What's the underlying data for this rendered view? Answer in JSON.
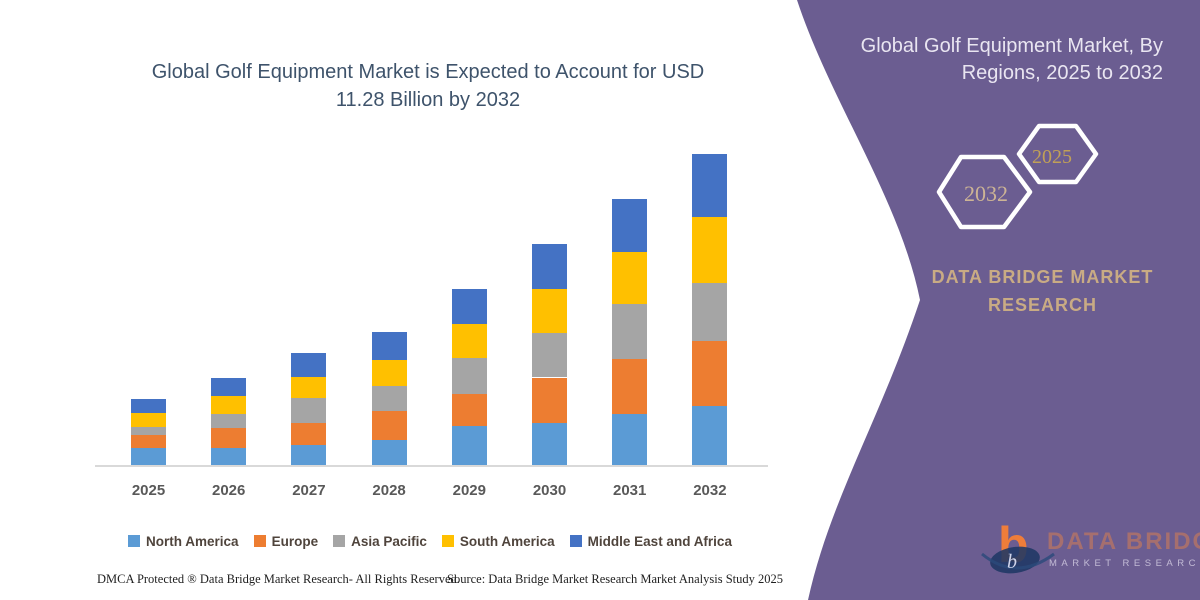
{
  "header": {
    "title_line1": "Global Golf Equipment Market is Expected to Account for USD",
    "title_line2": "11.28 Billion by 2032"
  },
  "chart_data": {
    "type": "bar",
    "stacked": true,
    "title": "Global Golf Equipment Market is Expected to Account for USD 11.28 Billion by 2032",
    "xlabel": "",
    "ylabel": "",
    "units": "USD Billion",
    "ylim": [
      0,
      11.28
    ],
    "grid": false,
    "y_axis_shown": false,
    "legend_position": "bottom",
    "categories": [
      "2025",
      "2026",
      "2027",
      "2028",
      "2029",
      "2030",
      "2031",
      "2032"
    ],
    "series": [
      {
        "name": "North America",
        "color": "#5b9bd5",
        "values": [
          0.6,
          0.62,
          0.72,
          0.9,
          1.4,
          1.51,
          1.85,
          2.15
        ]
      },
      {
        "name": "Europe",
        "color": "#ed7d31",
        "values": [
          0.48,
          0.72,
          0.81,
          1.05,
          1.19,
          1.66,
          1.99,
          2.35
        ]
      },
      {
        "name": "Asia Pacific",
        "color": "#a5a5a5",
        "values": [
          0.3,
          0.51,
          0.88,
          0.9,
          1.28,
          1.61,
          1.99,
          2.11
        ]
      },
      {
        "name": "South America",
        "color": "#ffc000",
        "values": [
          0.51,
          0.65,
          0.78,
          0.97,
          1.25,
          1.61,
          1.87,
          2.38
        ]
      },
      {
        "name": "Middle East and Africa",
        "color": "#4472c4",
        "values": [
          0.49,
          0.66,
          0.85,
          1.0,
          1.24,
          1.63,
          1.95,
          2.29
        ]
      }
    ],
    "totals": [
      2.38,
      3.16,
      4.04,
      4.82,
      6.36,
      8.02,
      9.65,
      11.28
    ]
  },
  "footer": {
    "dmca": "DMCA Protected ® Data Bridge Market Research-  All Rights Reserved.",
    "source": "Source: Data Bridge Market Research  Market Analysis Study 2025"
  },
  "side_panel": {
    "title_line1": "Global Golf Equipment Market, By",
    "title_line2": "Regions, 2025 to 2032",
    "hexagon_back_year": "2032",
    "hexagon_front_year": "2025",
    "brand_line1": "DATA BRIDGE MARKET",
    "brand_line2": "RESEARCH",
    "panel_color": "#6b5d91",
    "hexagon_outline_color": "#ffffff",
    "back_year_color": "#cdb495",
    "front_year_color": "#c1a057",
    "brand_text_color": "#c9ab84"
  },
  "watermark": {
    "logo_letter": "b",
    "brand": "DATA BRIDGE",
    "sub_brand": "MARKET RESEARCH",
    "logo_orange": "#ef7d3a",
    "logo_navy": "#1f3864"
  }
}
